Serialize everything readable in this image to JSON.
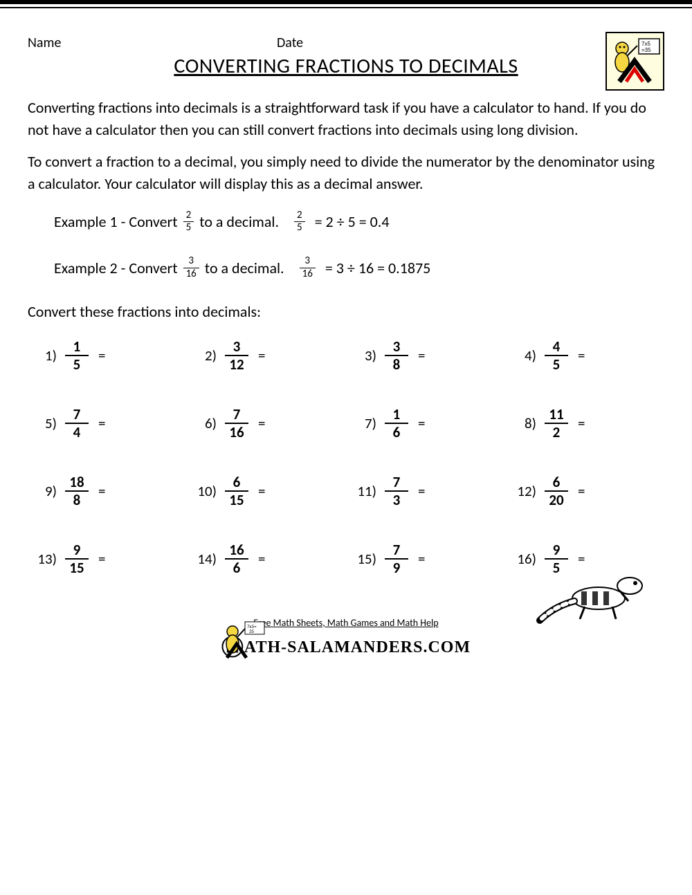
{
  "header": {
    "name_label": "Name",
    "date_label": "Date"
  },
  "title": "CONVERTING FRACTIONS TO DECIMALS",
  "intro": [
    "Converting fractions into decimals is a straightforward task if you have a calculator to hand. If you do not have a calculator then you can still convert fractions into decimals using long division.",
    "To convert a fraction to a decimal, you simply need to divide the numerator by the denominator using a calculator. Your calculator will display this as a decimal answer."
  ],
  "examples": [
    {
      "label": "Example 1 - Convert",
      "num": "2",
      "den": "5",
      "mid": "to a decimal.",
      "num2": "2",
      "den2": "5",
      "result": "= 2 ÷ 5 = 0.4"
    },
    {
      "label": "Example 2 - Convert",
      "num": "3",
      "den": "16",
      "mid": "to a decimal.",
      "num2": "3",
      "den2": "16",
      "result": "= 3 ÷ 16 = 0.1875"
    }
  ],
  "section_label": "Convert these fractions into decimals:",
  "problems": [
    {
      "n": "1)",
      "num": "1",
      "den": "5"
    },
    {
      "n": "2)",
      "num": "3",
      "den": "12"
    },
    {
      "n": "3)",
      "num": "3",
      "den": "8"
    },
    {
      "n": "4)",
      "num": "4",
      "den": "5"
    },
    {
      "n": "5)",
      "num": "7",
      "den": "4"
    },
    {
      "n": "6)",
      "num": "7",
      "den": "16"
    },
    {
      "n": "7)",
      "num": "1",
      "den": "6"
    },
    {
      "n": "8)",
      "num": "11",
      "den": "2"
    },
    {
      "n": "9)",
      "num": "18",
      "den": "8"
    },
    {
      "n": "10)",
      "num": "6",
      "den": "15"
    },
    {
      "n": "11)",
      "num": "7",
      "den": "3"
    },
    {
      "n": "12)",
      "num": "6",
      "den": "20"
    },
    {
      "n": "13)",
      "num": "9",
      "den": "15"
    },
    {
      "n": "14)",
      "num": "16",
      "den": "6"
    },
    {
      "n": "15)",
      "num": "7",
      "den": "9"
    },
    {
      "n": "16)",
      "num": "9",
      "den": "5"
    }
  ],
  "footer": {
    "tagline": "Free Math Sheets, Math Games and Math Help",
    "brand": "ATH-SALAMANDERS.COM"
  },
  "colors": {
    "text": "#000000",
    "background": "#ffffff",
    "logo_bg": "#fffde0",
    "mascot_yellow": "#f5d742",
    "salamander_gray": "#808080"
  }
}
